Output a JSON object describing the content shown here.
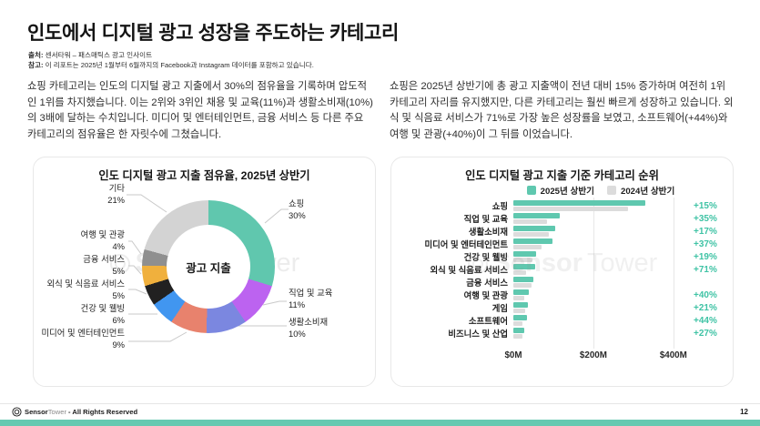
{
  "header": {
    "title": "인도에서 디지털 광고 성장을 주도하는 카테고리",
    "source_label": "출처:",
    "source_text": " 센서타워 – 패스매틱스 광고 인사이트",
    "note_label": "참고:",
    "note_text": " 이 리포트는 2025년 1월부터 6월까지의 Facebook과 Instagram 데이터를 포함하고 있습니다."
  },
  "body": {
    "left_paragraph": "쇼핑 카테고리는 인도의 디지털 광고 지출에서 30%의 점유율을 기록하며 압도적인 1위를 차지했습니다. 이는 2위와 3위인 채용 및 교육(11%)과 생활소비재(10%)의 3배에 달하는 수치입니다. 미디어 및 엔터테인먼트, 금융 서비스 등 다른 주요 카테고리의 점유율은 한 자릿수에 그쳤습니다.",
    "right_paragraph": "쇼핑은 2025년 상반기에 총 광고 지출액이 전년 대비 15% 증가하며 여전히 1위 카테고리 자리를 유지했지만, 다른 카테고리는 훨씬 빠르게 성장하고 있습니다. 외식 및 식음료 서비스가 71%로 가장 높은 성장률을 보였고, 소프트웨어(+44%)와 여행 및 관광(+40%)이 그 뒤를 이었습니다."
  },
  "chart_data": [
    {
      "type": "pie",
      "title": "인도 디지털 광고 지출 점유율, 2025년 상반기",
      "center_label": "광고 지출",
      "unit": "%",
      "legend_position": "labels-around-donut",
      "segments": [
        {
          "label": "쇼핑",
          "value": 30,
          "pct": "30%",
          "color": "#60C7AE"
        },
        {
          "label": "직업 및 교육",
          "value": 11,
          "pct": "11%",
          "color": "#BC63F0"
        },
        {
          "label": "생활소비재",
          "value": 10,
          "pct": "10%",
          "color": "#7B87E0"
        },
        {
          "label": "미디어 및 엔터테인먼트",
          "value": 9,
          "pct": "9%",
          "color": "#E8826D"
        },
        {
          "label": "건강 및 웰빙",
          "value": 6,
          "pct": "6%",
          "color": "#4196F0"
        },
        {
          "label": "외식 및 식음료 서비스",
          "value": 5,
          "pct": "5%",
          "color": "#212121"
        },
        {
          "label": "금융 서비스",
          "value": 5,
          "pct": "5%",
          "color": "#F0B03D"
        },
        {
          "label": "여행 및 관광",
          "value": 4,
          "pct": "4%",
          "color": "#8F8F8F"
        },
        {
          "label": "기타",
          "value": 21,
          "pct": "21%",
          "color": "#D3D3D3"
        }
      ]
    },
    {
      "type": "bar",
      "orientation": "horizontal",
      "title": "인도 디지털 광고 지출 기준 카테고리 순위",
      "unit": "$M",
      "xlabel": "",
      "ylabel": "",
      "xlim": [
        0,
        430
      ],
      "xticks": [
        "$0M",
        "$200M",
        "$400M"
      ],
      "xtick_values": [
        0,
        200,
        400
      ],
      "grid": "vertical-light",
      "legend_position": "top-center-of-plot",
      "legend": [
        {
          "label": "2025년 상반기",
          "color": "#5FC8AF"
        },
        {
          "label": "2024년 상반기",
          "color": "#DCDCDC"
        }
      ],
      "categories": [
        "쇼핑",
        "직업 및 교육",
        "생활소비재",
        "미디어 및 엔터테인먼트",
        "건강 및 웰빙",
        "외식 및 식음료 서비스",
        "금융 서비스",
        "여행 및 관광",
        "게임",
        "소프트웨어",
        "비즈니스 및 산업"
      ],
      "series": [
        {
          "name": "2025년 상반기",
          "values": [
            330,
            115,
            104,
            97,
            56,
            55,
            49,
            39,
            36,
            33,
            28
          ]
        },
        {
          "name": "2024년 상반기",
          "values": [
            287,
            85,
            89,
            71,
            47,
            32,
            45,
            28,
            30,
            23,
            22
          ]
        }
      ],
      "growth_labels": [
        "+15%",
        "+35%",
        "+17%",
        "+37%",
        "+19%",
        "+71%",
        "",
        "+40%",
        "+21%",
        "+44%",
        "+27%"
      ],
      "growth_label_color": "#3FC3A5"
    }
  ],
  "watermark": {
    "bold": "Sensor",
    "light": "Tower"
  },
  "footer": {
    "brand_bold": "Sensor",
    "brand_light": "Tower",
    "rights_text": "- All Rights Reserved",
    "page_number": "12"
  },
  "colors": {
    "accent_teal": "#5FC8AF",
    "bar_gray": "#DCDCDC",
    "growth_text": "#3FC3A5",
    "bottom_bar": "#66C9B1",
    "card_border": "#E8E8E8"
  }
}
